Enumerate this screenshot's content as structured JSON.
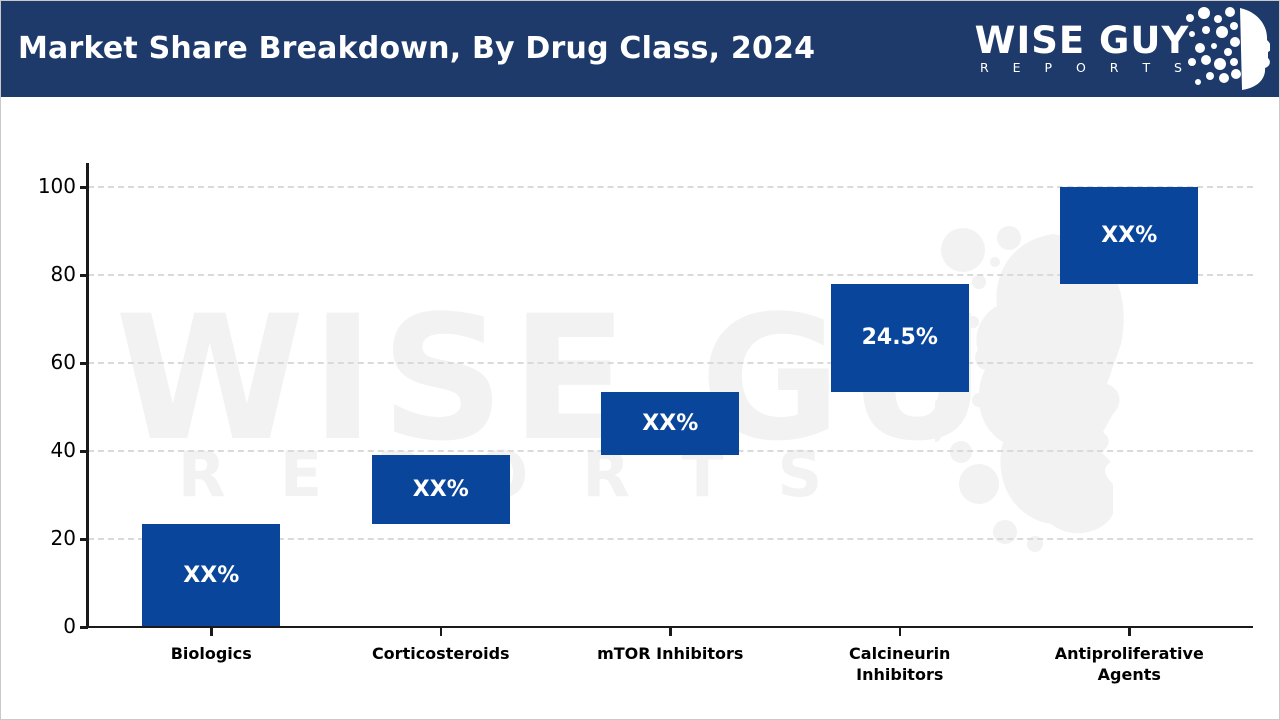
{
  "header": {
    "title": "Market Share Breakdown, By Drug Class, 2024",
    "bg_color": "#1e3a6b",
    "logo": {
      "line1": "WISE GUY",
      "line2": "R E P O R T S"
    }
  },
  "watermark": {
    "line1": "WISE GUY",
    "line2": "REPORTS"
  },
  "chart_data": {
    "type": "bar",
    "subtype": "waterfall",
    "title": "Market Share Breakdown, By Drug Class, 2024",
    "xlabel": "",
    "ylabel": "",
    "ylim": [
      0,
      105
    ],
    "y_ticks": [
      0,
      20,
      40,
      60,
      80,
      100
    ],
    "grid": "horizontal-dashed",
    "legend": "none",
    "bar_color": "#0a459c",
    "categories": [
      "Biologics",
      "Corticosteroids",
      "mTOR Inhibitors",
      "Calcineurin Inhibitors",
      "Antiproliferative Agents"
    ],
    "category_lines": [
      [
        "Biologics"
      ],
      [
        "Corticosteroids"
      ],
      [
        "mTOR Inhibitors"
      ],
      [
        "Calcineurin",
        "Inhibitors"
      ],
      [
        "Antiproliferative",
        "Agents"
      ]
    ],
    "segments": [
      {
        "category": "Biologics",
        "start": 0,
        "end": 23.5,
        "value": 23.5,
        "label": "XX%"
      },
      {
        "category": "Corticosteroids",
        "start": 23.5,
        "end": 39.2,
        "value": 15.7,
        "label": "XX%"
      },
      {
        "category": "mTOR Inhibitors",
        "start": 39.2,
        "end": 53.5,
        "value": 14.3,
        "label": "XX%"
      },
      {
        "category": "Calcineurin Inhibitors",
        "start": 53.5,
        "end": 78.0,
        "value": 24.5,
        "label": "24.5%"
      },
      {
        "category": "Antiproliferative Agents",
        "start": 78.0,
        "end": 100.0,
        "value": 22.0,
        "label": "XX%"
      }
    ],
    "colors": {
      "bar": "#0a459c",
      "grid": "#dadada",
      "axis": "#1a1a1a",
      "tick_text": "#000000",
      "bar_label_text": "#ffffff",
      "header_bg": "#1e3a6b",
      "watermark": "#f2f2f2"
    }
  }
}
